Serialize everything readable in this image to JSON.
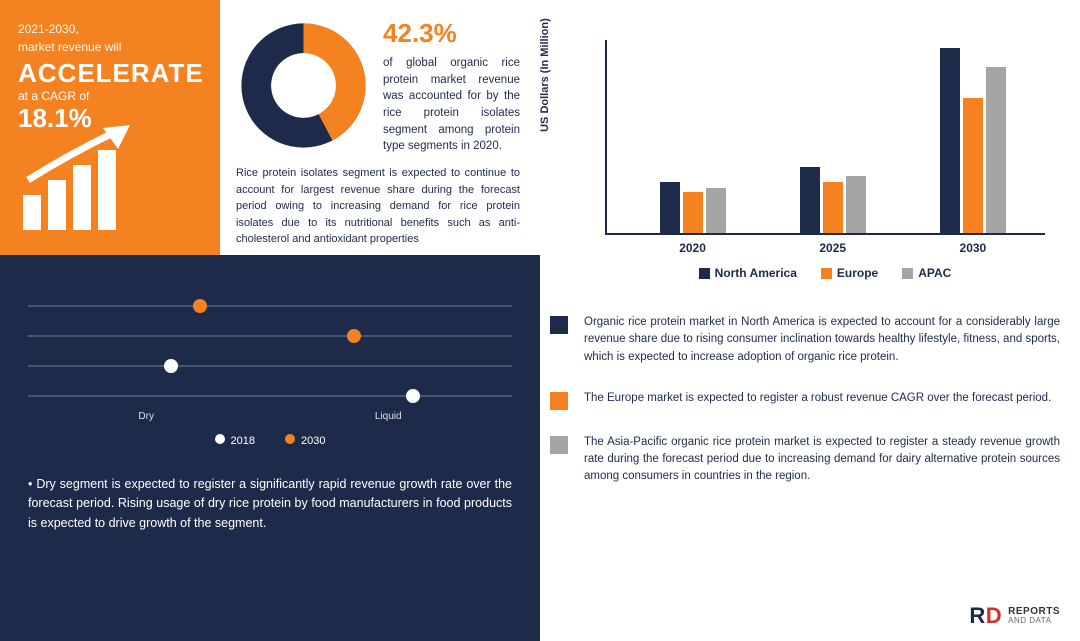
{
  "accel_card": {
    "pre1": "2021-2030,",
    "pre2": "market revenue will",
    "word": "ACCELERATE",
    "mid": "at a CAGR of",
    "pct": "18.1%",
    "bg_color": "#f58220"
  },
  "donut": {
    "pct_label": "42.3%",
    "desc": "of global organic rice protein market revenue was accounted for by the rice protein isolates segment among protein type segments in 2020.",
    "body": "Rice protein isolates segment is expected to continue to account for largest revenue share during the forecast period owing to increasing demand for rice protein isolates due to its nutritional benefits such as anti-cholesterol and antioxidant properties",
    "slice_pct": 42.3,
    "colors": {
      "slice": "#f58220",
      "rest": "#1e2a4a",
      "hole": "#ffffff"
    }
  },
  "slider_area": {
    "bg_color": "#1e2a4a",
    "categories": [
      "Dry",
      "Liquid"
    ],
    "series": [
      {
        "label": "2018",
        "color": "#ffffff",
        "positions": [
          28,
          78
        ]
      },
      {
        "label": "2030",
        "color": "#f58220",
        "positions": [
          34,
          66
        ]
      }
    ],
    "bullet": "Dry segment is expected to register a significantly rapid revenue growth rate over the forecast period. Rising usage of dry rice protein by food manufacturers in food products is expected to drive growth of the segment."
  },
  "bar_chart": {
    "type": "bar",
    "ylabel": "US Dollars (In Million)",
    "series": [
      {
        "name": "North America",
        "color": "#1e2a4a"
      },
      {
        "name": "Europe",
        "color": "#f58220"
      },
      {
        "name": "APAC",
        "color": "#a5a5a5"
      }
    ],
    "groups": [
      {
        "label": "2020",
        "values": [
          52,
          42,
          46
        ]
      },
      {
        "label": "2025",
        "values": [
          68,
          52,
          58
        ]
      },
      {
        "label": "2030",
        "values": [
          190,
          138,
          170
        ]
      }
    ],
    "ymax": 200,
    "axis_color": "#1e2a4a"
  },
  "region_notes": {
    "items": [
      {
        "color": "#1e2a4a",
        "text": "Organic rice protein market in North America is expected to account for a considerably large revenue share due to rising consumer inclination towards healthy lifestyle, fitness, and sports, which is expected to increase adoption of organic rice protein."
      },
      {
        "color": "#f58220",
        "text": "The Europe market is expected to register a robust revenue CAGR over the forecast period."
      },
      {
        "color": "#a5a5a5",
        "text": "The Asia-Pacific organic rice protein market is expected to register a steady revenue growth rate during the forecast period due to increasing demand for dairy alternative protein sources among consumers in countries in the region."
      }
    ]
  },
  "logo": {
    "brand1": "REPORTS",
    "brand2": "AND DATA"
  }
}
